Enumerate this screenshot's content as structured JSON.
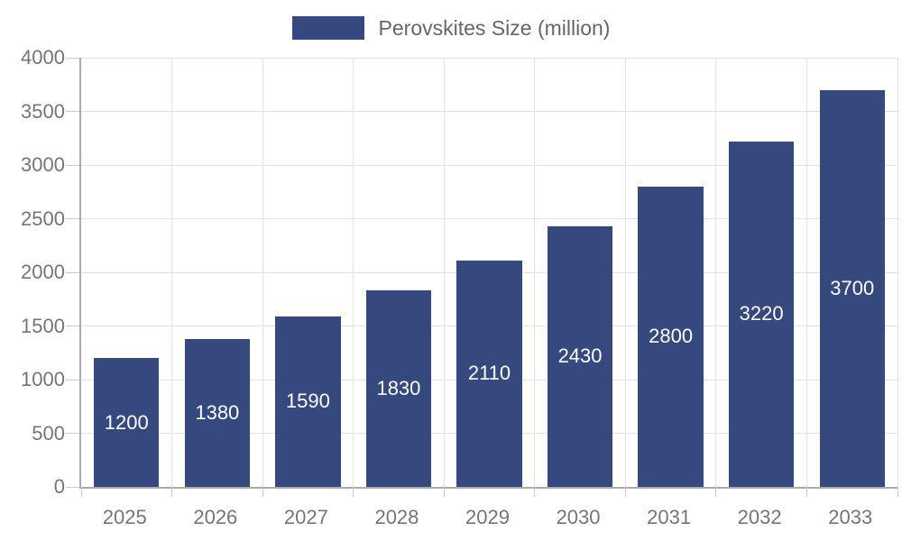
{
  "legend": {
    "label": "Perovskites Size (million)"
  },
  "colors": {
    "bar": "#35497f",
    "grid": "#e2e2e2",
    "axis": "#aaaaaa",
    "tick": "#cccccc",
    "tick_label": "#757575",
    "legend_text": "#666666",
    "bar_label": "#ffffff",
    "background": "#ffffff"
  },
  "chart_data": {
    "type": "bar",
    "title": "",
    "xlabel": "",
    "ylabel": "",
    "categories": [
      "2025",
      "2026",
      "2027",
      "2028",
      "2029",
      "2030",
      "2031",
      "2032",
      "2033"
    ],
    "series": [
      {
        "name": "Perovskites Size (million)",
        "values": [
          1200,
          1380,
          1590,
          1830,
          2110,
          2430,
          2800,
          3220,
          3700
        ]
      }
    ],
    "ylim": [
      0,
      4000
    ],
    "ytick_interval": 500,
    "yticks": [
      0,
      500,
      1000,
      1500,
      2000,
      2500,
      3000,
      3500,
      4000
    ],
    "grid": true,
    "legend_position": "top",
    "bar_labels": "inside-center"
  }
}
